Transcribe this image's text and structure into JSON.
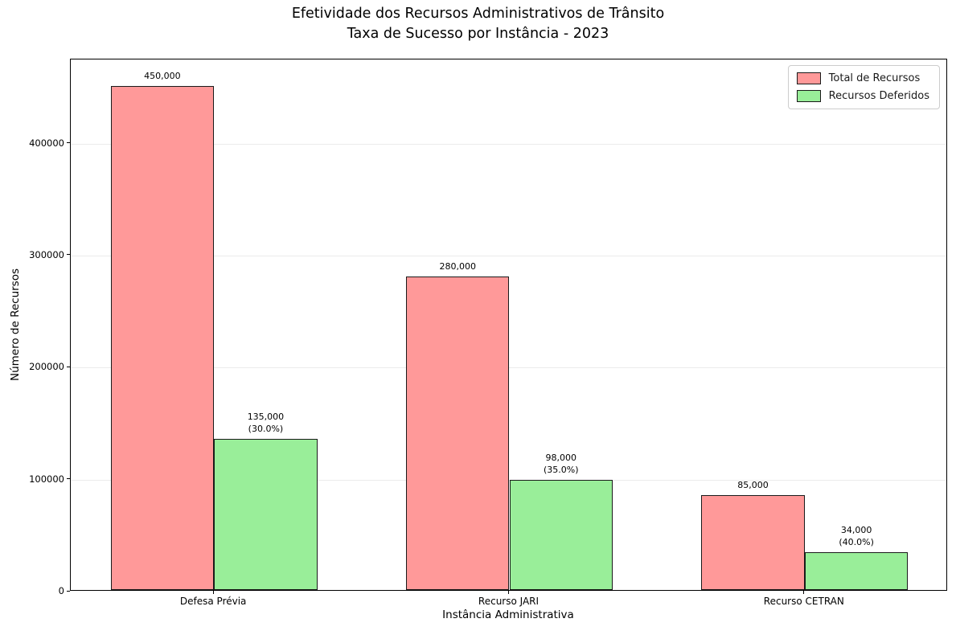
{
  "chart_data": {
    "type": "bar",
    "title_line1": "Efetividade dos Recursos Administrativos de Trânsito",
    "title_line2": "Taxa de Sucesso por Instância - 2023",
    "xlabel": "Instância Administrativa",
    "ylabel": "Número de Recursos",
    "categories": [
      "Defesa Prévia",
      "Recurso JARI",
      "Recurso CETRAN"
    ],
    "series": [
      {
        "name": "Total de Recursos",
        "color": "#ff9999",
        "edge_color": "#1a1a1a",
        "values": [
          450000,
          280000,
          85000
        ],
        "bar_labels": [
          [
            "450,000"
          ],
          [
            "280,000"
          ],
          [
            "85,000"
          ]
        ]
      },
      {
        "name": "Recursos Deferidos",
        "color": "#99ee99",
        "edge_color": "#1a1a1a",
        "values": [
          135000,
          98000,
          34000
        ],
        "bar_labels": [
          [
            "135,000",
            "(30.0%)"
          ],
          [
            "98,000",
            "(35.0%)"
          ],
          [
            "34,000",
            "(40.0%)"
          ]
        ]
      }
    ],
    "yticks": [
      0,
      100000,
      200000,
      300000,
      400000
    ],
    "ytick_labels": [
      "0",
      "100000",
      "200000",
      "300000",
      "400000"
    ],
    "ylim": [
      0,
      475000
    ],
    "xlim": [
      -0.485,
      2.485
    ],
    "bar_width_units": 0.35,
    "grid": "horizontal",
    "grid_color": "#ebebeb",
    "legend_position": "upper right"
  }
}
